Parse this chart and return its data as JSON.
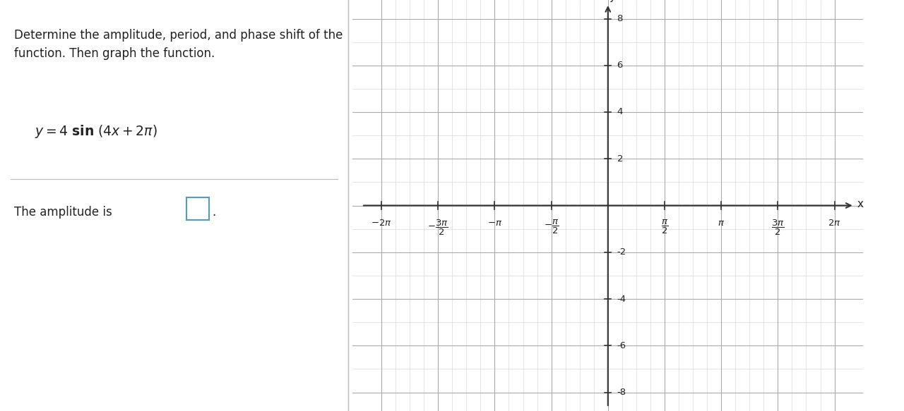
{
  "title_text": "Determine the amplitude, period, and phase shift of the\nfunction. Then graph the function.",
  "background_color": "#ffffff",
  "graph_bg": "#ffffff",
  "grid_minor_color": "#d8d8d8",
  "grid_major_color": "#aaaaaa",
  "axis_color": "#333333",
  "divider_color": "#bbbbbb",
  "text_color": "#222222",
  "box_color": "#5599cc",
  "xlim_left": -7.2,
  "xlim_right": 7.5,
  "ylim_bottom": -9.0,
  "ylim_top": 9.5,
  "pi": 3.141592653589793
}
